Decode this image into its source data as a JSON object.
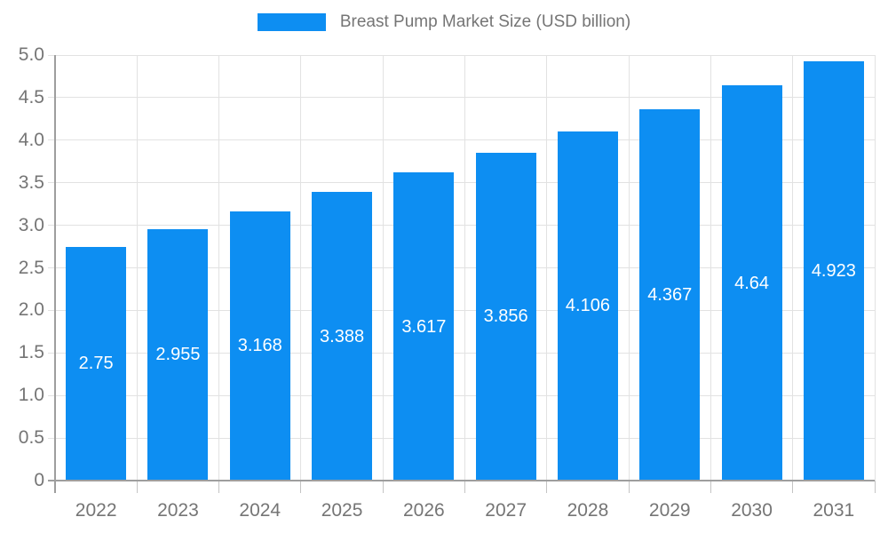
{
  "chart_data": {
    "type": "bar",
    "title": "Breast Pump Market Size (USD billion)",
    "categories": [
      "2022",
      "2023",
      "2024",
      "2025",
      "2026",
      "2027",
      "2028",
      "2029",
      "2030",
      "2031"
    ],
    "values": [
      2.75,
      2.955,
      3.168,
      3.388,
      3.617,
      3.856,
      4.106,
      4.367,
      4.64,
      4.923
    ],
    "value_labels": [
      "2.75",
      "2.955",
      "3.168",
      "3.388",
      "3.617",
      "3.856",
      "4.106",
      "4.367",
      "4.64",
      "4.923"
    ],
    "xlabel": "",
    "ylabel": "",
    "ylim": [
      0,
      5
    ],
    "ytick_step": 0.5,
    "ytick_labels": [
      "0",
      "0.5",
      "1.0",
      "1.5",
      "2.0",
      "2.5",
      "3.0",
      "3.5",
      "4.0",
      "4.5",
      "5.0"
    ],
    "grid": true,
    "legend_position": "top-center",
    "bar_label_position": "inside-middle"
  },
  "colors": {
    "bar": "#0d8ef2",
    "grid": "#e2e2e2",
    "axis": "#9e9e9e",
    "tick": "#c4c4c4",
    "axis_text": "#757575",
    "legend_text": "#757575",
    "bar_label_text": "#ffffff",
    "background": "#ffffff"
  }
}
